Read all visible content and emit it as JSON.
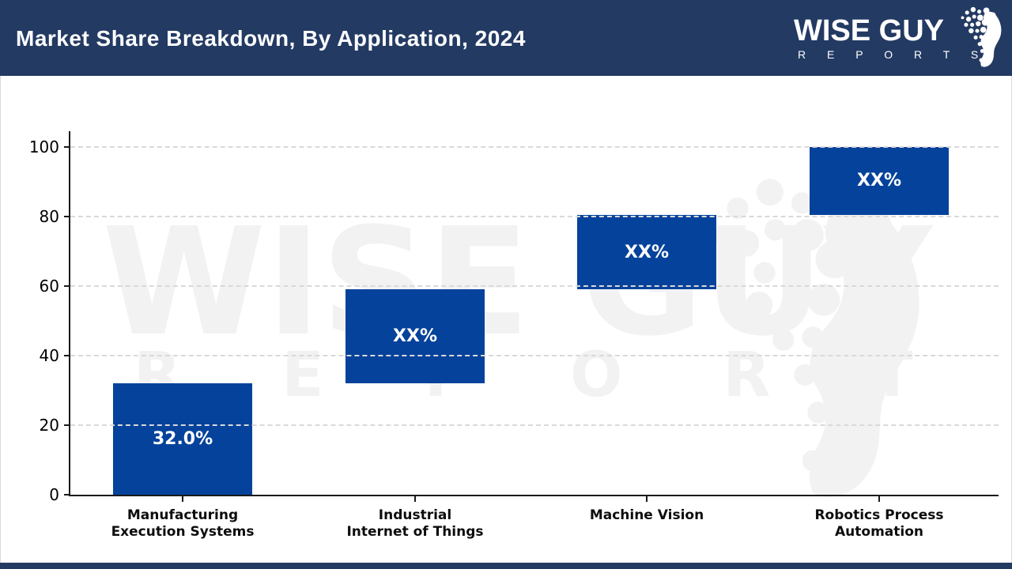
{
  "header": {
    "title": "Market Share Breakdown, By Application, 2024",
    "bg_color": "#233a63",
    "logo": {
      "line1": "WISE GUY",
      "line2": "R E P O R T S"
    }
  },
  "watermark": {
    "line1": "WISE GUY",
    "line2": "R E P O R T S",
    "color": "#f2f2f3"
  },
  "chart_data": {
    "type": "bar",
    "subtype": "waterfall",
    "title": "Market Share Breakdown, By Application, 2024",
    "categories": [
      [
        "Manufacturing",
        "Execution Systems"
      ],
      [
        "Industrial",
        "Internet of Things"
      ],
      [
        "Machine Vision"
      ],
      [
        "Robotics Process",
        "Automation"
      ]
    ],
    "segments": [
      {
        "start": 0,
        "end": 32,
        "value": 32,
        "label": "32.0%"
      },
      {
        "start": 32,
        "end": 59,
        "value": 27,
        "label": "XX%"
      },
      {
        "start": 59,
        "end": 80.5,
        "value": 21.5,
        "label": "XX%"
      },
      {
        "start": 80.5,
        "end": 100,
        "value": 19.5,
        "label": "XX%"
      }
    ],
    "ylim": [
      0,
      100
    ],
    "yticks": [
      0,
      20,
      40,
      60,
      80,
      100
    ],
    "grid": "horizontal-dashed",
    "legend": "none",
    "bar_color": "#05429b",
    "bar_label_color": "#ffffff",
    "axis_color": "#1a1a1a",
    "gridline_color": "#d9d9d9"
  },
  "footer": {
    "bg_color": "#233a63"
  }
}
